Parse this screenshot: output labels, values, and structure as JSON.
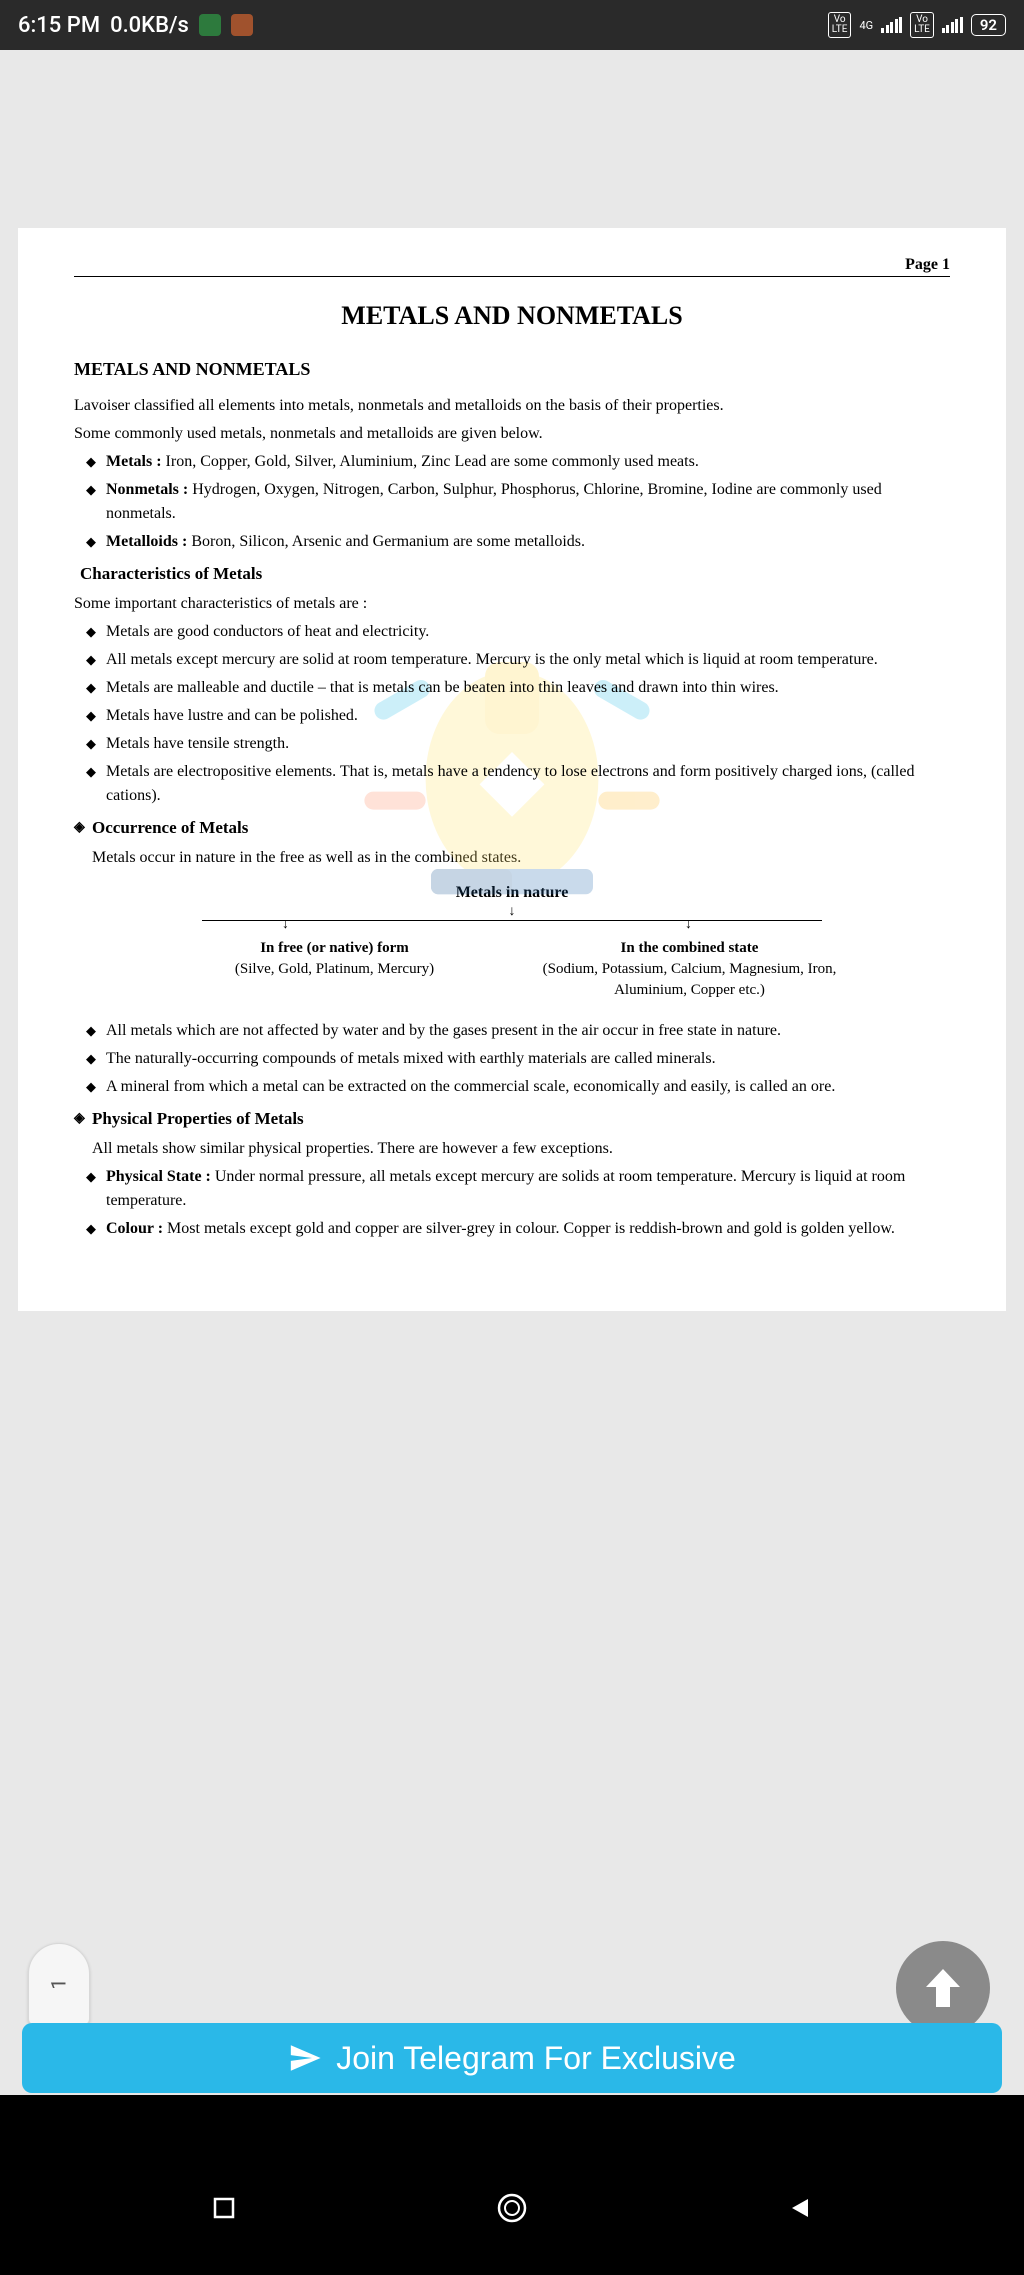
{
  "status": {
    "time": "6:15 PM",
    "speed": "0.0KB/s",
    "network_label": "4G",
    "lte_top": "Vo",
    "lte_bottom": "LTE",
    "battery": "92"
  },
  "doc": {
    "page_label": "Page 1",
    "title": "METALS AND NONMETALS",
    "heading1": "METALS  AND    NONMETALS",
    "intro1": "Lavoiser classified all elements into metals, nonmetals and metalloids on the basis of their properties.",
    "intro2": "Some commonly used metals, nonmetals and metalloids are given below.",
    "type_bullets": [
      "<b>Metals :</b> Iron, Copper, Gold, Silver, Aluminium, Zinc Lead are some commonly used meats.",
      "<b>Nonmetals :</b> Hydrogen, Oxygen, Nitrogen, Carbon, Sulphur, Phosphorus, Chlorine, Bromine, Iodine are commonly used nonmetals.",
      "<b>Metalloids :</b> Boron, Silicon, Arsenic and Germanium are some metalloids."
    ],
    "char_heading": "Characteristics of Metals",
    "char_intro": "Some important characteristics of metals are :",
    "char_bullets": [
      "Metals are good conductors of heat and electricity.",
      "All metals except mercury are solid at room temperature. Mercury is the only metal which is liquid at room temperature.",
      "Metals are malleable and ductile – that is metals can be beaten into thin leaves and drawn into thin wires.",
      "Metals have lustre and can be polished.",
      "Metals have tensile strength.",
      "Metals are electropositive elements. That is, metals have a tendency to lose electrons and form positively charged ions, (called cations)."
    ],
    "occ_heading": "Occurrence of Metals",
    "occ_intro": "Metals occur in nature in the free as well as in the combined states.",
    "diagram": {
      "top": "Metals in nature",
      "left_title": "In free (or native) form",
      "left_sub": "(Silve, Gold, Platinum, Mercury)",
      "right_title": "In the combined state",
      "right_sub": "(Sodium, Potassium, Calcium, Magnesium, Iron, Aluminium, Copper etc.)"
    },
    "occ_bullets": [
      "All metals which are not affected by water and by the gases present in the air occur in free state in nature.",
      "The naturally-occurring compounds of metals mixed with earthly materials are called minerals.",
      "A mineral from which a metal can be extracted on the commercial scale, economically and easily, is called an ore."
    ],
    "phys_heading": "Physical Properties of Metals",
    "phys_intro": "All metals show similar physical properties. There are however a few exceptions.",
    "phys_bullets": [
      "<b>Physical State :</b> Under normal pressure, all metals except mercury are solids at room temperature. Mercury is liquid  at room temperature.",
      "<b>Colour :</b> Most metals except gold and copper are silver-grey in colour. Copper is reddish-brown and gold is golden yellow."
    ]
  },
  "page_indicator": "1",
  "banner_text": "Join Telegram For Exclusive"
}
